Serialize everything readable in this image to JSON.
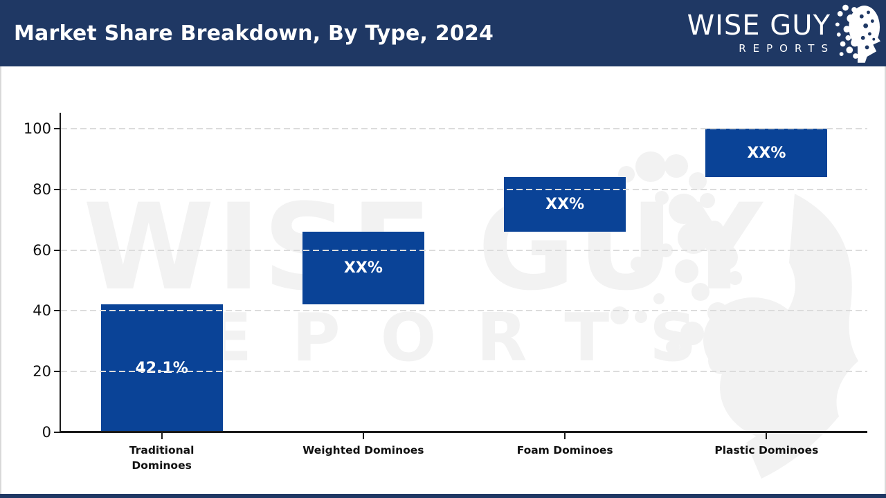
{
  "header": {
    "title": "Market Share Breakdown, By Type, 2024",
    "logo": {
      "name": "WISE GUY",
      "tagline": "REPORTS"
    }
  },
  "watermark": {
    "line1": "WISE GUY",
    "line2": "REPORTS"
  },
  "colors": {
    "header_bg": "#1f3864",
    "footer_bg": "#1f3864",
    "bar_fill": "#0a4397",
    "bar_label_text": "#ffffff",
    "gridline": "#dcdcdc",
    "axis": "#1a1a1a",
    "tick_text": "#111111",
    "watermark": "#f2f2f2",
    "frame_border": "#d9d9d9"
  },
  "chart_data": {
    "type": "bar",
    "subtype": "waterfall-floating-bars",
    "title": "Market Share Breakdown, By Type, 2024",
    "categories": [
      "Traditional\nDominoes",
      "Weighted Dominoes",
      "Foam Dominoes",
      "Plastic Dominoes"
    ],
    "segments": [
      {
        "category": "Traditional Dominoes",
        "start": 0,
        "end": 42.1,
        "label": "42.1%"
      },
      {
        "category": "Weighted Dominoes",
        "start": 42.1,
        "end": 66,
        "label": "XX%"
      },
      {
        "category": "Foam Dominoes",
        "start": 66,
        "end": 84,
        "label": "XX%"
      },
      {
        "category": "Plastic Dominoes",
        "start": 84,
        "end": 100,
        "label": "XX%"
      }
    ],
    "xlabel": "",
    "ylabel": "",
    "yticks": [
      0,
      20,
      40,
      60,
      80,
      100
    ],
    "ylim": [
      0,
      105
    ],
    "grid": "horizontal-dashed",
    "legend": "none"
  }
}
